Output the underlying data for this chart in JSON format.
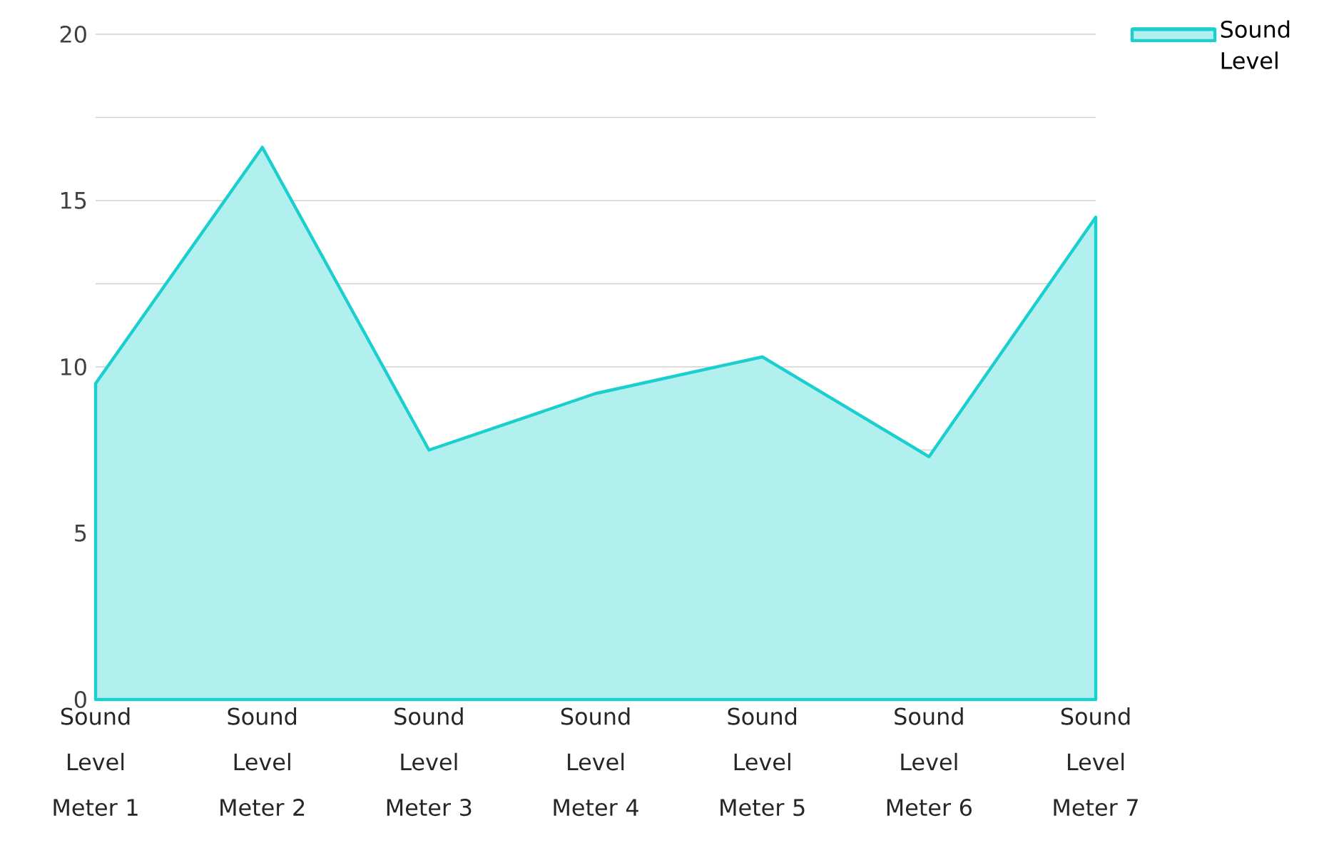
{
  "chart_data": {
    "type": "area",
    "categories": [
      "Sound Level Meter 1",
      "Sound Level Meter 2",
      "Sound Level Meter 3",
      "Sound Level Meter 4",
      "Sound Level Meter 5",
      "Sound Level Meter 6",
      "Sound Level Meter 7"
    ],
    "series": [
      {
        "name": "Sound Level",
        "color": "#1ccfcf",
        "values": [
          9.5,
          16.6,
          7.5,
          9.2,
          10.3,
          7.3,
          14.5
        ]
      }
    ],
    "ylim": [
      0,
      20
    ],
    "yticks": [
      0,
      {
        "value": 2.5,
        "label": null
      },
      5,
      {
        "value": 7.5,
        "label": null
      },
      10,
      {
        "value": 12.5,
        "label": null
      },
      15,
      {
        "value": 17.5,
        "label": null
      },
      20
    ],
    "grid": "y",
    "legend": "top right"
  }
}
